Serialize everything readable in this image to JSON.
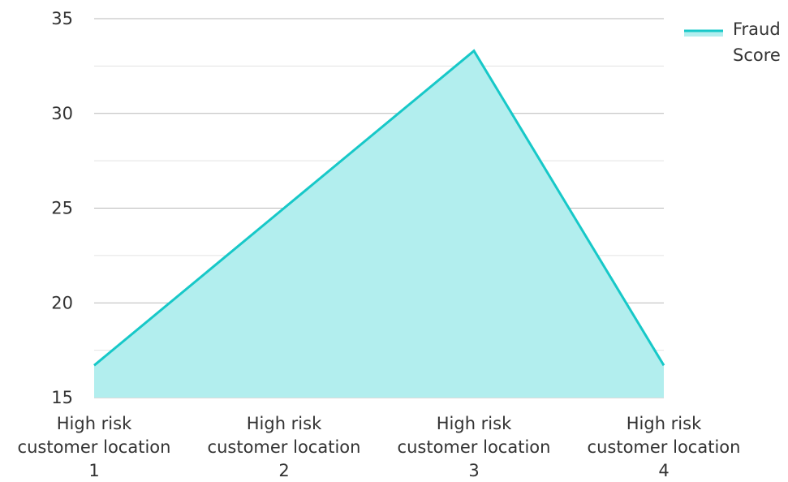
{
  "chart_data": {
    "type": "area",
    "categories": [
      [
        "High risk",
        "customer location",
        "1"
      ],
      [
        "High risk",
        "customer location",
        "2"
      ],
      [
        "High risk",
        "customer location",
        "3"
      ],
      [
        "High risk",
        "customer location",
        "4"
      ]
    ],
    "series": [
      {
        "name": "Fraud Score",
        "legend_lines": [
          "Fraud",
          "Score"
        ],
        "values": [
          16.7,
          25.0,
          33.3,
          16.7
        ],
        "line_color": "#17c8c8",
        "fill_color": "#b2eeee"
      }
    ],
    "ylim": [
      15,
      35
    ],
    "y_ticks": [
      15,
      20,
      25,
      30,
      35
    ],
    "minor_grid_step": 2.5,
    "grid": true,
    "legend_position": "top-right",
    "colors": {
      "major_grid": "#b9b9b9",
      "minor_grid": "#e3e3e3",
      "text": "#333333"
    }
  }
}
